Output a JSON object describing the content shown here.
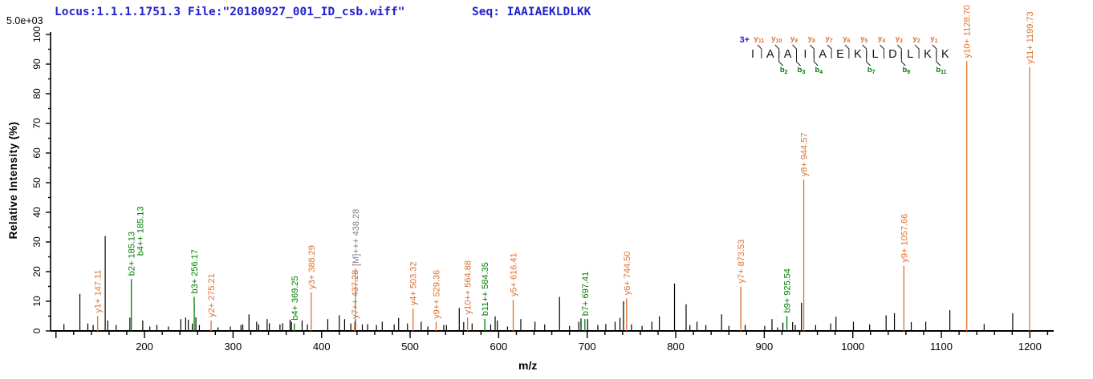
{
  "header": {
    "locus_file": "Locus:1.1.1.1751.3 File:\"20180927_001_ID_csb.wiff\"",
    "seq": "Seq: IAAIAEKLDLKK"
  },
  "colors": {
    "y_ion": "#e0702a",
    "b_ion": "#007d00",
    "precursor": "#808080",
    "header_blue": "#2222cc",
    "axis": "#000000",
    "noise_peak": "#000000"
  },
  "chart_data": {
    "type": "bar",
    "subtype": "ms2-stick-spectrum",
    "title": "",
    "xlabel": "m/z",
    "ylabel": "Relative Intensity (%)",
    "scale_note": "5.0e+03",
    "xlim": [
      94,
      1227
    ],
    "ylim": [
      0,
      100
    ],
    "x_major_tick_step": 100,
    "x_minor_tick_step": 20,
    "x_tick_labels": [
      200,
      300,
      400,
      500,
      600,
      700,
      800,
      900,
      1000,
      1100,
      1200
    ],
    "y_major_tick_step": 10,
    "y_minor_tick_step": 5,
    "y_tick_labels": [
      0,
      10,
      20,
      30,
      40,
      50,
      60,
      70,
      80,
      90,
      100
    ],
    "grid": false,
    "annotated_peaks": [
      {
        "label": "y1+ 147.11",
        "mz": 147.11,
        "pct": 5,
        "type": "y"
      },
      {
        "label": "b2+ 185.13",
        "mz": 185.13,
        "pct": 17.5,
        "type": "b",
        "label2": "b4++ 185.13"
      },
      {
        "label": "b3+ 256.17",
        "mz": 256.17,
        "pct": 11.5,
        "type": "b"
      },
      {
        "label": "y2+ 275.21",
        "mz": 275.21,
        "pct": 3.5,
        "type": "y"
      },
      {
        "label": "b4+ 369.25",
        "mz": 369.25,
        "pct": 2.5,
        "type": "b"
      },
      {
        "label": "y3+ 388.29",
        "mz": 388.29,
        "pct": 13,
        "type": "y"
      },
      {
        "label": "y7++ 437.28",
        "mz": 437.28,
        "pct": 3,
        "type": "y"
      },
      {
        "label": "[M]+++ 438.28",
        "mz": 438.28,
        "pct": 4,
        "type": "precursor",
        "leader": true,
        "label_bottom_y": 332
      },
      {
        "label": "y4+ 503.32",
        "mz": 503.32,
        "pct": 7.5,
        "type": "y"
      },
      {
        "label": "y9++ 529.36",
        "mz": 529.36,
        "pct": 3,
        "type": "y"
      },
      {
        "label": "y10++ 564.88",
        "mz": 564.88,
        "pct": 4.5,
        "type": "y"
      },
      {
        "label": "b11++ 584.35",
        "mz": 584.35,
        "pct": 4,
        "type": "b"
      },
      {
        "label": "y5+ 616.41",
        "mz": 616.41,
        "pct": 10.5,
        "type": "y"
      },
      {
        "label": "b7+ 697.41",
        "mz": 697.41,
        "pct": 4,
        "type": "b"
      },
      {
        "label": "y6+ 744.50",
        "mz": 744.5,
        "pct": 11,
        "type": "y"
      },
      {
        "label": "y7+ 873.53",
        "mz": 873.53,
        "pct": 15,
        "type": "y"
      },
      {
        "label": "b9+ 925.54",
        "mz": 925.54,
        "pct": 5,
        "type": "b"
      },
      {
        "label": "y8+ 944.57",
        "mz": 944.57,
        "pct": 51,
        "type": "y"
      },
      {
        "label": "y9+ 1057.66",
        "mz": 1057.66,
        "pct": 22,
        "type": "y"
      },
      {
        "label": "y10+ 1128.70",
        "mz": 1128.7,
        "pct": 91,
        "type": "y"
      },
      {
        "label": "y11+ 1199.73",
        "mz": 1199.73,
        "pct": 89,
        "type": "y"
      }
    ],
    "noise_peaks": [
      [
        109,
        2.3
      ],
      [
        127,
        12.5
      ],
      [
        136,
        2.5
      ],
      [
        142,
        2
      ],
      [
        155.6,
        32
      ],
      [
        158.5,
        3.5
      ],
      [
        168,
        2
      ],
      [
        183.5,
        4.5
      ],
      [
        198,
        3.5
      ],
      [
        206,
        1.5
      ],
      [
        214,
        2
      ],
      [
        227,
        1.5
      ],
      [
        241,
        4
      ],
      [
        246.5,
        4.5
      ],
      [
        249.5,
        3.8
      ],
      [
        254,
        2.5
      ],
      [
        258,
        4.6
      ],
      [
        262,
        2
      ],
      [
        283,
        1.2
      ],
      [
        297,
        1.5
      ],
      [
        309,
        2
      ],
      [
        311,
        2.2
      ],
      [
        318,
        5.6
      ],
      [
        326.7,
        3.1
      ],
      [
        329,
        2.2
      ],
      [
        338.5,
        4
      ],
      [
        341,
        2.6
      ],
      [
        353,
        2.2
      ],
      [
        356,
        2.6
      ],
      [
        364.4,
        3.8
      ],
      [
        366,
        3.1
      ],
      [
        378,
        3.5
      ],
      [
        384,
        2.2
      ],
      [
        407,
        4
      ],
      [
        420,
        5.3
      ],
      [
        426,
        4
      ],
      [
        433,
        2.5
      ],
      [
        446,
        2.2
      ],
      [
        452,
        2.3
      ],
      [
        462,
        2
      ],
      [
        468.5,
        3.1
      ],
      [
        482,
        2.2
      ],
      [
        487,
        4.4
      ],
      [
        497,
        2.5
      ],
      [
        512.5,
        3.1
      ],
      [
        520,
        1.5
      ],
      [
        538,
        2
      ],
      [
        541,
        2
      ],
      [
        555.5,
        7.7
      ],
      [
        560.5,
        3
      ],
      [
        570,
        2.5
      ],
      [
        591,
        2.2
      ],
      [
        596,
        4.9
      ],
      [
        598.5,
        3.5
      ],
      [
        610,
        1.5
      ],
      [
        625,
        4
      ],
      [
        641,
        3.1
      ],
      [
        652,
        2.2
      ],
      [
        668.7,
        11.5
      ],
      [
        680,
        1.7
      ],
      [
        690.5,
        3.1
      ],
      [
        693,
        4.2
      ],
      [
        700.5,
        4
      ],
      [
        712,
        2
      ],
      [
        721,
        2.3
      ],
      [
        731.5,
        3.1
      ],
      [
        737,
        4.4
      ],
      [
        741,
        10
      ],
      [
        750,
        2.2
      ],
      [
        762,
        1.7
      ],
      [
        773,
        3.1
      ],
      [
        781.5,
        4.9
      ],
      [
        798.6,
        16
      ],
      [
        811.7,
        9
      ],
      [
        816,
        2
      ],
      [
        824,
        3.1
      ],
      [
        834,
        2
      ],
      [
        851.8,
        5.6
      ],
      [
        860,
        1.7
      ],
      [
        878.4,
        2
      ],
      [
        900.5,
        1.7
      ],
      [
        908.7,
        4
      ],
      [
        915,
        1.2
      ],
      [
        921,
        2.8
      ],
      [
        932,
        3
      ],
      [
        935,
        2
      ],
      [
        942,
        9.5
      ],
      [
        958,
        2
      ],
      [
        975,
        2.5
      ],
      [
        981,
        4.8
      ],
      [
        1000.7,
        3.1
      ],
      [
        1019,
        2.2
      ],
      [
        1037.6,
        5.3
      ],
      [
        1047,
        6
      ],
      [
        1066,
        3
      ],
      [
        1082.4,
        3.1
      ],
      [
        1109.6,
        7
      ],
      [
        1148.3,
        2.3
      ],
      [
        1180.6,
        6
      ]
    ]
  },
  "ladder": {
    "charge_label": "3+",
    "residues": [
      "I",
      "A",
      "A",
      "I",
      "A",
      "E",
      "K",
      "L",
      "D",
      "L",
      "K",
      "K"
    ],
    "y_subs": [
      "11",
      "10",
      "9",
      "8",
      "7",
      "6",
      "5",
      "4",
      "3",
      "2",
      "1"
    ],
    "b_marks": [
      {
        "sub": "2",
        "cleavage": 2
      },
      {
        "sub": "3",
        "cleavage": 3
      },
      {
        "sub": "4",
        "cleavage": 4
      },
      {
        "sub": "7",
        "cleavage": 7
      },
      {
        "sub": "9",
        "cleavage": 9
      },
      {
        "sub": "11",
        "cleavage": 11
      }
    ]
  }
}
